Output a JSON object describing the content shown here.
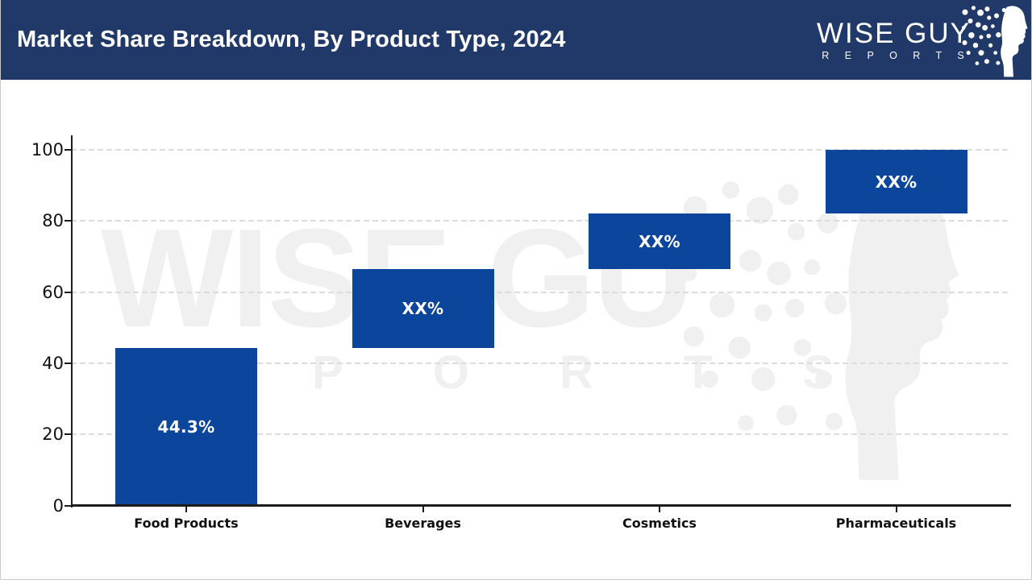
{
  "header": {
    "title": "Market Share Breakdown, By Product Type, 2024",
    "logo": {
      "name": "WISE GUY",
      "subtitle": "R E P O R T S"
    }
  },
  "watermark": {
    "text_main": "WISE GU",
    "text_sub": "P O R T S"
  },
  "chart_data": {
    "type": "bar",
    "subtype": "waterfall",
    "title": "Market Share Breakdown, By Product Type, 2024",
    "categories": [
      "Food Products",
      "Beverages",
      "Cosmetics",
      "Pharmaceuticals"
    ],
    "segments": [
      {
        "category": "Food Products",
        "start": 0,
        "end": 44.3,
        "label": "44.3%"
      },
      {
        "category": "Beverages",
        "start": 44.3,
        "end": 66.5,
        "label": "XX%"
      },
      {
        "category": "Cosmetics",
        "start": 66.5,
        "end": 82.0,
        "label": "XX%"
      },
      {
        "category": "Pharmaceuticals",
        "start": 82.0,
        "end": 100.0,
        "label": "XX%"
      }
    ],
    "xlabel": "",
    "ylabel": "",
    "ylim": [
      0,
      100
    ],
    "yticks": [
      0,
      20,
      40,
      60,
      80,
      100
    ],
    "grid": "horizontal-dashed",
    "legend": "none",
    "bar_color": "#0b459c",
    "bar_label_color": "#ffffff"
  },
  "colors": {
    "header_bg": "#213968",
    "bar": "#0b459c",
    "watermark": "#f0f0f0",
    "axis": "#1c1c1c",
    "gridline": "#dcdcdc",
    "frame_border": "#c9c9c9"
  }
}
